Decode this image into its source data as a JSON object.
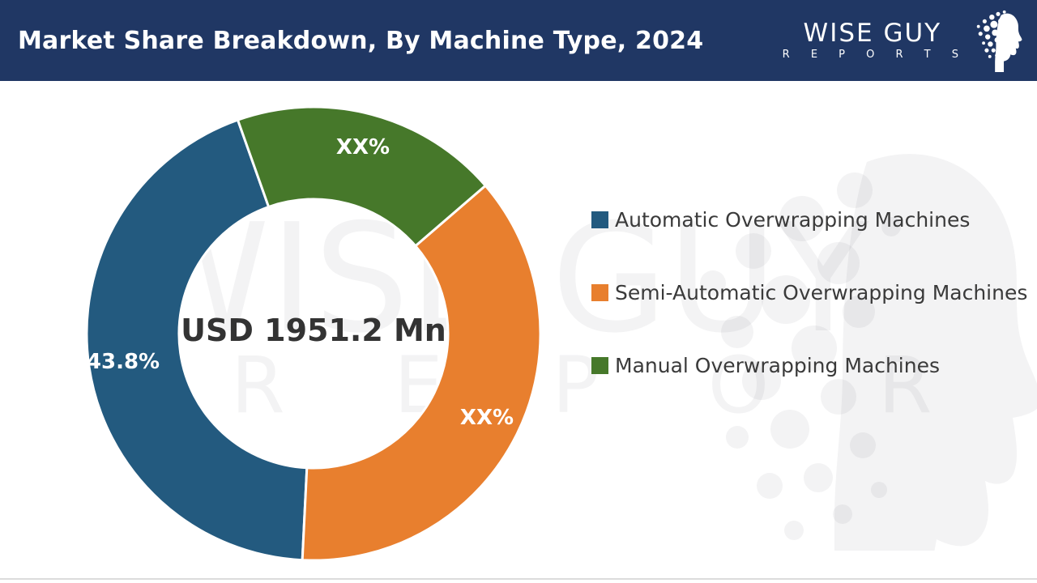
{
  "header": {
    "title": "Market Share Breakdown, By Machine Type, 2024",
    "bg_color": "#203764",
    "logo": {
      "line1": "WISE GUY",
      "line2": "R E P O R T S"
    }
  },
  "chart_data": {
    "type": "pie",
    "subtype": "donut",
    "title": "Market Share Breakdown, By Machine Type, 2024",
    "center_label": "USD 1951.2 Mn",
    "start_angle_deg": 109.5,
    "direction": "counterclockwise",
    "legend_position": "right",
    "series": [
      {
        "name": "Automatic Overwrapping Machines",
        "value_pct": 43.8,
        "label": "43.8%",
        "color": "#235A7F"
      },
      {
        "name": "Semi-Automatic Overwrapping Machines",
        "value_pct": 37.1,
        "label": "XX%",
        "color": "#E87F2E"
      },
      {
        "name": "Manual Overwrapping Machines",
        "value_pct": 19.1,
        "label": "XX%",
        "color": "#46782A"
      }
    ]
  },
  "watermark": {
    "line1": "WISE GUY",
    "line2": "R E P O R T S"
  },
  "colors": {
    "center_text": "#333333",
    "legend_text": "#3A3A3A",
    "slice_label_text": "#FFFFFF",
    "divider": "#DCDCDC"
  }
}
